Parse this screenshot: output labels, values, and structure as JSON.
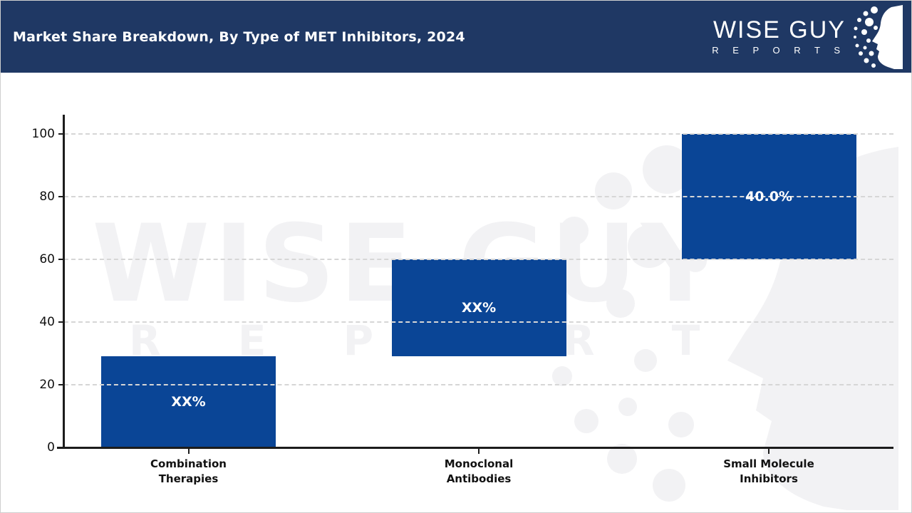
{
  "header": {
    "title": "Market Share Breakdown, By Type of MET Inhibitors, 2024",
    "bg_color": "#1f3864",
    "logo": {
      "line1": "WISE GUY",
      "line2": "R E P O R T S"
    }
  },
  "watermark": {
    "line1": "WISE GUY",
    "line2": "R E P O R T S"
  },
  "chart_data": {
    "type": "bar",
    "subtype": "waterfall",
    "title": "Market Share Breakdown, By Type of MET Inhibitors, 2024",
    "xlabel": "",
    "ylabel": "",
    "ylim": [
      0,
      106
    ],
    "yticks": [
      0,
      20,
      40,
      60,
      80,
      100
    ],
    "grid": "horizontal dashed, drawn above bars",
    "legend": "none",
    "bar_color": "#0a4596",
    "bar_label_color": "#ffffff",
    "categories": [
      {
        "line1": "Combination",
        "line2": "Therapies"
      },
      {
        "line1": "Monoclonal",
        "line2": "Antibodies"
      },
      {
        "line1": "Small Molecule",
        "line2": "Inhibitors"
      }
    ],
    "segments": [
      {
        "category": "Combination Therapies",
        "start": 0,
        "end": 29,
        "value": 29,
        "label": "XX%"
      },
      {
        "category": "Monoclonal Antibodies",
        "start": 29,
        "end": 60,
        "value": 31,
        "label": "XX%"
      },
      {
        "category": "Small Molecule Inhibitors",
        "start": 60,
        "end": 100,
        "value": 40,
        "label": "40.0%"
      }
    ]
  }
}
